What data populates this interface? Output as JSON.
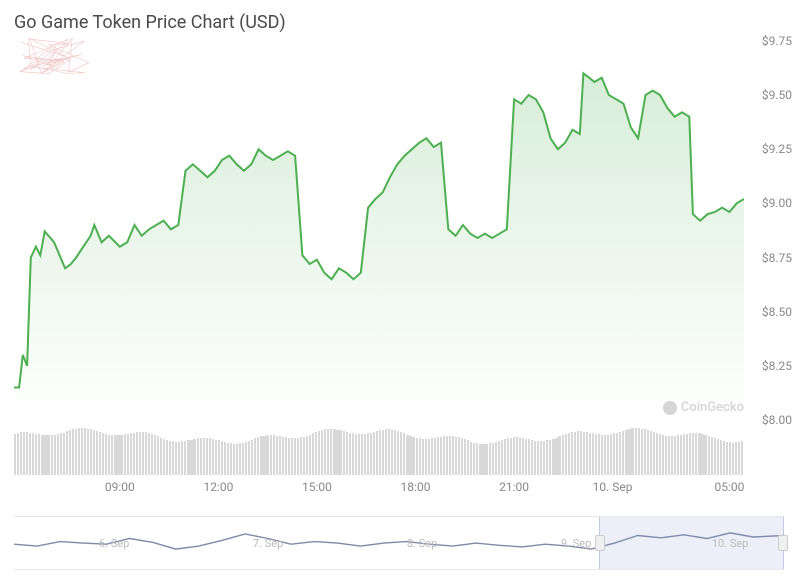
{
  "title": "Go Game Token Price Chart (USD)",
  "watermark": "CoinGecko",
  "chart": {
    "type": "area",
    "line_color": "#4caf50",
    "line_width": 2,
    "fill_top": "rgba(76,175,80,0.22)",
    "fill_bottom": "rgba(76,175,80,0.0)",
    "background_color": "#ffffff",
    "ylim": [
      8.0,
      9.8
    ],
    "ytick_step": 0.25,
    "y_labels": [
      "$8.00",
      "$8.25",
      "$8.50",
      "$8.75",
      "$9.00",
      "$9.25",
      "$9.50",
      "$9.75"
    ],
    "y_values": [
      8.0,
      8.25,
      8.5,
      8.75,
      9.0,
      9.25,
      9.5,
      9.75
    ],
    "x_labels": [
      "09:00",
      "12:00",
      "15:00",
      "18:00",
      "21:00",
      "10. Sep",
      "05:00"
    ],
    "x_positions_pct": [
      14.5,
      28.0,
      41.5,
      55.0,
      68.5,
      82.0,
      98.0
    ],
    "x_label_fontsize": 12,
    "y_label_fontsize": 12,
    "label_color": "#888888",
    "price_series": [
      [
        0.0,
        8.15
      ],
      [
        0.7,
        8.15
      ],
      [
        1.2,
        8.3
      ],
      [
        1.8,
        8.25
      ],
      [
        2.3,
        8.75
      ],
      [
        3.0,
        8.8
      ],
      [
        3.6,
        8.76
      ],
      [
        4.2,
        8.87
      ],
      [
        5.0,
        8.84
      ],
      [
        5.5,
        8.82
      ],
      [
        6.0,
        8.78
      ],
      [
        7.0,
        8.7
      ],
      [
        7.8,
        8.72
      ],
      [
        8.5,
        8.75
      ],
      [
        9.5,
        8.8
      ],
      [
        10.5,
        8.85
      ],
      [
        11.0,
        8.9
      ],
      [
        12.0,
        8.82
      ],
      [
        13.0,
        8.85
      ],
      [
        14.5,
        8.8
      ],
      [
        15.5,
        8.82
      ],
      [
        16.5,
        8.9
      ],
      [
        17.5,
        8.85
      ],
      [
        18.5,
        8.88
      ],
      [
        19.5,
        8.9
      ],
      [
        20.5,
        8.92
      ],
      [
        21.5,
        8.88
      ],
      [
        22.5,
        8.9
      ],
      [
        23.5,
        9.15
      ],
      [
        24.5,
        9.18
      ],
      [
        25.5,
        9.15
      ],
      [
        26.5,
        9.12
      ],
      [
        27.5,
        9.15
      ],
      [
        28.5,
        9.2
      ],
      [
        29.5,
        9.22
      ],
      [
        30.5,
        9.18
      ],
      [
        31.5,
        9.15
      ],
      [
        32.5,
        9.18
      ],
      [
        33.5,
        9.25
      ],
      [
        34.5,
        9.22
      ],
      [
        35.5,
        9.2
      ],
      [
        36.5,
        9.22
      ],
      [
        37.5,
        9.24
      ],
      [
        38.5,
        9.22
      ],
      [
        39.5,
        8.76
      ],
      [
        40.5,
        8.72
      ],
      [
        41.5,
        8.74
      ],
      [
        42.5,
        8.68
      ],
      [
        43.5,
        8.65
      ],
      [
        44.5,
        8.7
      ],
      [
        45.5,
        8.68
      ],
      [
        46.5,
        8.65
      ],
      [
        47.5,
        8.68
      ],
      [
        48.5,
        8.98
      ],
      [
        49.5,
        9.02
      ],
      [
        50.5,
        9.05
      ],
      [
        51.5,
        9.12
      ],
      [
        52.5,
        9.18
      ],
      [
        53.5,
        9.22
      ],
      [
        54.5,
        9.25
      ],
      [
        55.5,
        9.28
      ],
      [
        56.5,
        9.3
      ],
      [
        57.5,
        9.26
      ],
      [
        58.5,
        9.28
      ],
      [
        59.5,
        8.88
      ],
      [
        60.5,
        8.85
      ],
      [
        61.5,
        8.9
      ],
      [
        62.5,
        8.86
      ],
      [
        63.5,
        8.84
      ],
      [
        64.5,
        8.86
      ],
      [
        65.5,
        8.84
      ],
      [
        66.5,
        8.86
      ],
      [
        67.5,
        8.88
      ],
      [
        68.5,
        9.48
      ],
      [
        69.5,
        9.46
      ],
      [
        70.5,
        9.5
      ],
      [
        71.5,
        9.48
      ],
      [
        72.5,
        9.42
      ],
      [
        73.5,
        9.3
      ],
      [
        74.5,
        9.25
      ],
      [
        75.5,
        9.28
      ],
      [
        76.5,
        9.34
      ],
      [
        77.5,
        9.32
      ],
      [
        78.0,
        9.6
      ],
      [
        78.8,
        9.58
      ],
      [
        79.5,
        9.56
      ],
      [
        80.5,
        9.58
      ],
      [
        81.5,
        9.5
      ],
      [
        82.5,
        9.48
      ],
      [
        83.5,
        9.46
      ],
      [
        84.5,
        9.35
      ],
      [
        85.5,
        9.3
      ],
      [
        86.5,
        9.5
      ],
      [
        87.5,
        9.52
      ],
      [
        88.5,
        9.5
      ],
      [
        89.5,
        9.44
      ],
      [
        90.5,
        9.4
      ],
      [
        91.5,
        9.42
      ],
      [
        92.5,
        9.4
      ],
      [
        93.0,
        8.95
      ],
      [
        94.0,
        8.92
      ],
      [
        95.0,
        8.95
      ],
      [
        96.0,
        8.96
      ],
      [
        97.0,
        8.98
      ],
      [
        98.0,
        8.96
      ],
      [
        99.0,
        9.0
      ],
      [
        100.0,
        9.02
      ]
    ]
  },
  "volume": {
    "bar_color": "#d8d8d8",
    "count": 240,
    "min_h": 0.55,
    "max_h": 1.0
  },
  "navigator": {
    "line_color": "#7e8aa8",
    "line_width": 1.4,
    "labels": [
      "6. Sep",
      "7. Sep",
      "8. Sep",
      "9. Sep",
      "10. Sep"
    ],
    "label_positions_pct": [
      13,
      33,
      53,
      73,
      93
    ],
    "selection_start_pct": 76,
    "selection_end_pct": 100,
    "series": [
      [
        0,
        0.55
      ],
      [
        3,
        0.5
      ],
      [
        6,
        0.62
      ],
      [
        9,
        0.58
      ],
      [
        12,
        0.55
      ],
      [
        15,
        0.7
      ],
      [
        18,
        0.6
      ],
      [
        21,
        0.42
      ],
      [
        24,
        0.5
      ],
      [
        27,
        0.65
      ],
      [
        30,
        0.82
      ],
      [
        33,
        0.7
      ],
      [
        36,
        0.55
      ],
      [
        39,
        0.62
      ],
      [
        42,
        0.58
      ],
      [
        45,
        0.5
      ],
      [
        48,
        0.58
      ],
      [
        51,
        0.62
      ],
      [
        54,
        0.55
      ],
      [
        57,
        0.5
      ],
      [
        60,
        0.58
      ],
      [
        63,
        0.52
      ],
      [
        66,
        0.48
      ],
      [
        69,
        0.55
      ],
      [
        72,
        0.5
      ],
      [
        75,
        0.42
      ],
      [
        78,
        0.58
      ],
      [
        81,
        0.78
      ],
      [
        84,
        0.72
      ],
      [
        87,
        0.8
      ],
      [
        90,
        0.7
      ],
      [
        93,
        0.85
      ],
      [
        96,
        0.74
      ],
      [
        100,
        0.78
      ]
    ]
  },
  "logo": {
    "stroke": "#e8a0a0",
    "stroke_width": 0.6
  }
}
